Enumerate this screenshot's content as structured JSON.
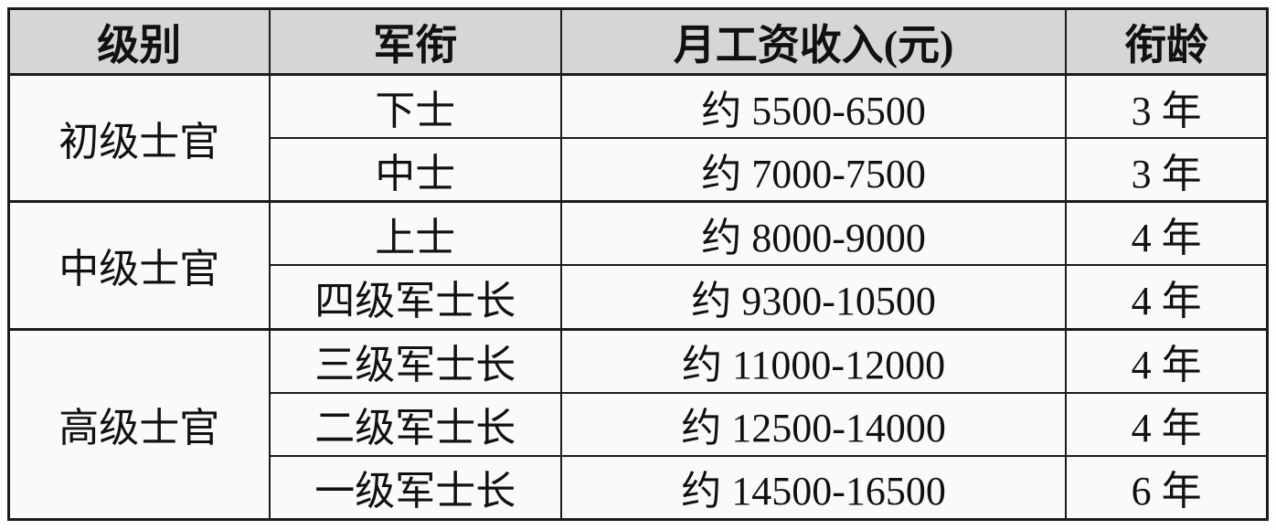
{
  "chart_data": {
    "type": "table",
    "columns": [
      "级别",
      "军衔",
      "月工资收入(元)",
      "衔龄"
    ],
    "groups": [
      {
        "level": "初级士官",
        "rows": [
          {
            "rank": "下士",
            "salary": "约 5500-6500",
            "tenure": "3 年"
          },
          {
            "rank": "中士",
            "salary": "约 7000-7500",
            "tenure": "3 年"
          }
        ]
      },
      {
        "level": "中级士官",
        "rows": [
          {
            "rank": "上士",
            "salary": "约 8000-9000",
            "tenure": "4 年"
          },
          {
            "rank": "四级军士长",
            "salary": "约 9300-10500",
            "tenure": "4 年"
          }
        ]
      },
      {
        "level": "高级士官",
        "rows": [
          {
            "rank": "三级军士长",
            "salary": "约 11000-12000",
            "tenure": "4 年"
          },
          {
            "rank": "二级军士长",
            "salary": "约 12500-14000",
            "tenure": "4 年"
          },
          {
            "rank": "一级军士长",
            "salary": "约 14500-16500",
            "tenure": "6 年"
          }
        ]
      }
    ],
    "layout": {
      "grid": "on",
      "header_row": true,
      "merged_first_column": true
    }
  },
  "colors": {
    "page_bg": "#fdfdfd",
    "header_bg": "#d7d6d4",
    "cell_bg": "#fbfaf8",
    "border": "#1b1b1b",
    "text": "#111111"
  }
}
